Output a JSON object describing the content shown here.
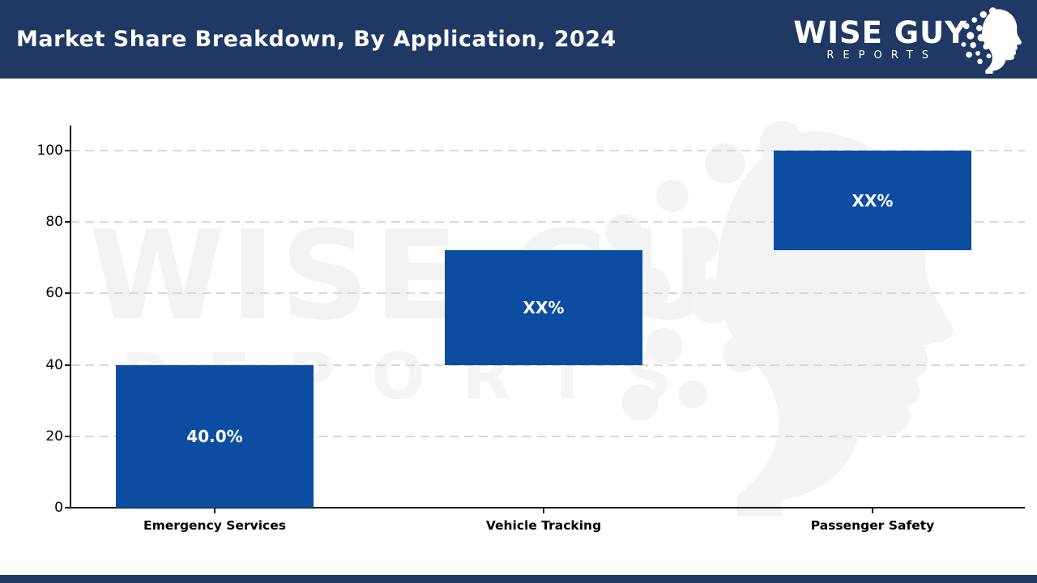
{
  "header": {
    "title": "Market Share Breakdown, By Application, 2024",
    "logo": {
      "wordmark": "WISE GUY",
      "subtext": "REPORTS"
    }
  },
  "watermark": {
    "wordmark": "WISE GUY",
    "subtext": "REPORTS"
  },
  "chart_data": {
    "type": "bar",
    "variant": "floating-segment-waterfall",
    "title": "Market Share Breakdown, By Application, 2024",
    "categories": [
      "Emergency Services",
      "Vehicle Tracking",
      "Passenger Safety"
    ],
    "segments": [
      {
        "category": "Emergency Services",
        "start": 0,
        "end": 40,
        "label": "40.0%"
      },
      {
        "category": "Vehicle Tracking",
        "start": 40,
        "end": 72,
        "label": "XX%"
      },
      {
        "category": "Passenger Safety",
        "start": 72,
        "end": 100,
        "label": "XX%"
      }
    ],
    "ylim": [
      0,
      100
    ],
    "yticks": [
      0,
      20,
      40,
      60,
      80,
      100
    ],
    "grid": "horizontal-dashed",
    "legend": "none",
    "colors": {
      "bar": "#0c4da2",
      "bar_label": "#ffffff",
      "grid": "#d8d8d8",
      "axis": "#1a1a1a",
      "header_bg": "#1f3864",
      "watermark": "#f2f2f3"
    }
  }
}
